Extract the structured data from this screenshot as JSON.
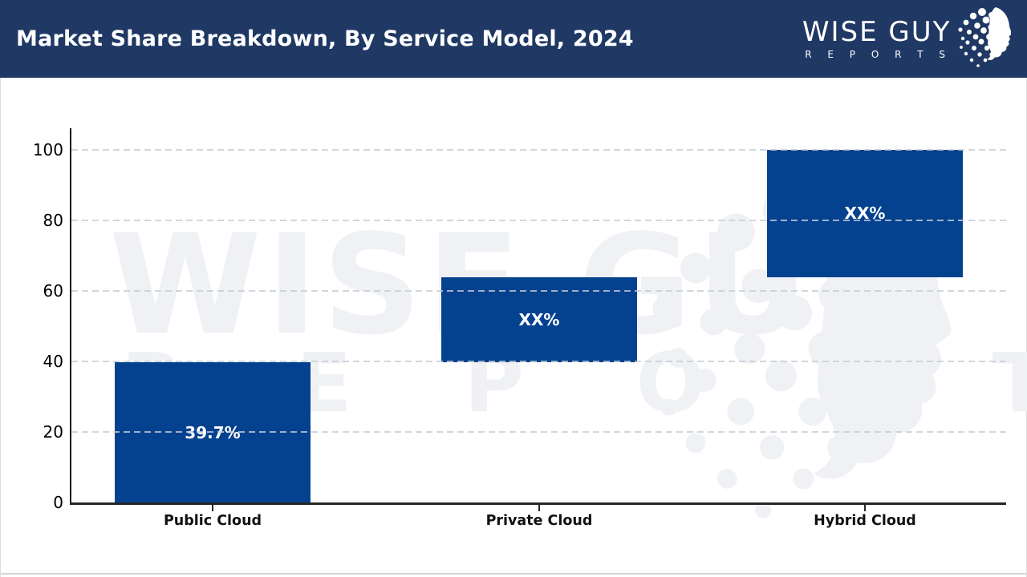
{
  "header": {
    "title": "Market Share Breakdown, By Service Model, 2024",
    "logo": {
      "line1": "WISE GUY",
      "line2": "R E P O R T S"
    }
  },
  "watermark": {
    "line1": "WISE GUY",
    "line2": "R E P O R T S"
  },
  "colors": {
    "header_bg": "#1f3864",
    "header_text": "#ffffff",
    "bar": "#04428f",
    "bar_label": "#ffffff",
    "axis": "#1a1a1a",
    "grid": "#c6ccd5",
    "watermark": "#f0f1f4"
  },
  "chart_data": {
    "type": "bar",
    "subtype": "floating-waterfall-breakdown",
    "title": "Market Share Breakdown, By Service Model, 2024",
    "categories": [
      "Public Cloud",
      "Private Cloud",
      "Hybrid Cloud"
    ],
    "segments": [
      {
        "category": "Public Cloud",
        "start": 0,
        "end": 39.7,
        "value": 39.7,
        "label": "39.7%"
      },
      {
        "category": "Private Cloud",
        "start": 39.7,
        "end": 63.9,
        "value": 24.2,
        "label": "XX%"
      },
      {
        "category": "Hybrid Cloud",
        "start": 63.9,
        "end": 100,
        "value": 36.1,
        "label": "XX%"
      }
    ],
    "yticks": [
      0,
      20,
      40,
      60,
      80,
      100
    ],
    "ylim": [
      0,
      100
    ],
    "xlabel": "",
    "ylabel": "",
    "legend": null,
    "grid": {
      "axis": "y",
      "style": "dashed"
    }
  }
}
